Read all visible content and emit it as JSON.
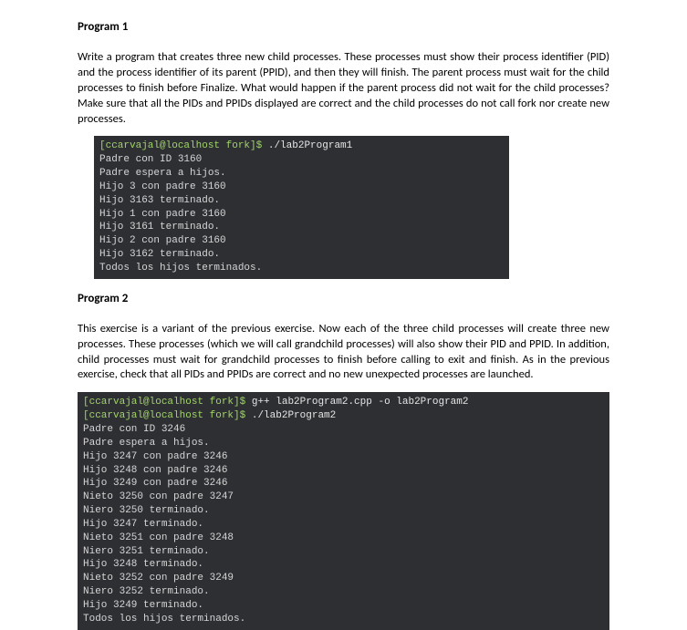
{
  "program1": {
    "heading": "Program 1",
    "paragraph": "Write a program that creates three new child processes. These processes must show their process identifier (PID) and the process identifier of its parent (PPID), and then they will finish. The parent process must wait for the child processes to finish before Finalize. What would happen if the parent process did not wait for the child processes? Make sure that all the PIDs and PPIDs displayed are correct and the child processes do not call fork nor create new processes.",
    "terminal": {
      "prompt": "[ccarvajal@localhost fork]$ ",
      "command": "./lab2Program1",
      "lines": [
        "Padre con ID 3160",
        "Padre espera a hijos.",
        "Hijo 3 con padre 3160",
        "Hijo 3163 terminado.",
        "Hijo 1 con padre 3160",
        "Hijo 3161 terminado.",
        "Hijo 2 con padre 3160",
        "Hijo 3162 terminado.",
        "Todos los hijos terminados."
      ]
    }
  },
  "program2": {
    "heading": "Program 2",
    "paragraph": "This exercise is a variant of the previous exercise. Now each of the three child processes will create three new processes. These processes (which we will call grandchild processes) will also show their PID and PPID. In addition, child processes must wait for grandchild processes to finish before calling to exit and finish. As in the previous exercise, check that all PIDs and PPIDs are correct and no new unexpected processes are launched.",
    "terminal": {
      "prompt1": "[ccarvajal@localhost fork]$ ",
      "command1": "g++ lab2Program2.cpp -o lab2Program2",
      "prompt2": "[ccarvajal@localhost fork]$ ",
      "command2": "./lab2Program2",
      "lines": [
        "Padre con ID 3246",
        "Padre espera a hijos.",
        "Hijo 3247 con padre 3246",
        "Hijo 3248 con padre 3246",
        "Hijo 3249 con padre 3246",
        "Nieto 3250 con padre 3247",
        "Niero 3250 terminado.",
        "Hijo 3247 terminado.",
        "Nieto 3251 con padre 3248",
        "Niero 3251 terminado.",
        "Hijo 3248 terminado.",
        "Nieto 3252 con padre 3249",
        "Niero 3252 terminado.",
        "Hijo 3249 terminado.",
        "Todos los hijos terminados."
      ]
    }
  },
  "colors": {
    "page_bg": "#ffffff",
    "text": "#000000",
    "terminal_bg": "#2e2f33",
    "terminal_fg": "#d6d6d6",
    "prompt_user": "#a0d468"
  },
  "fonts": {
    "body_family": "Calibri, Arial, sans-serif",
    "terminal_family": "Courier New, monospace",
    "heading_size_pt": 13,
    "body_size_pt": 12.5,
    "terminal_size_pt": 11
  }
}
